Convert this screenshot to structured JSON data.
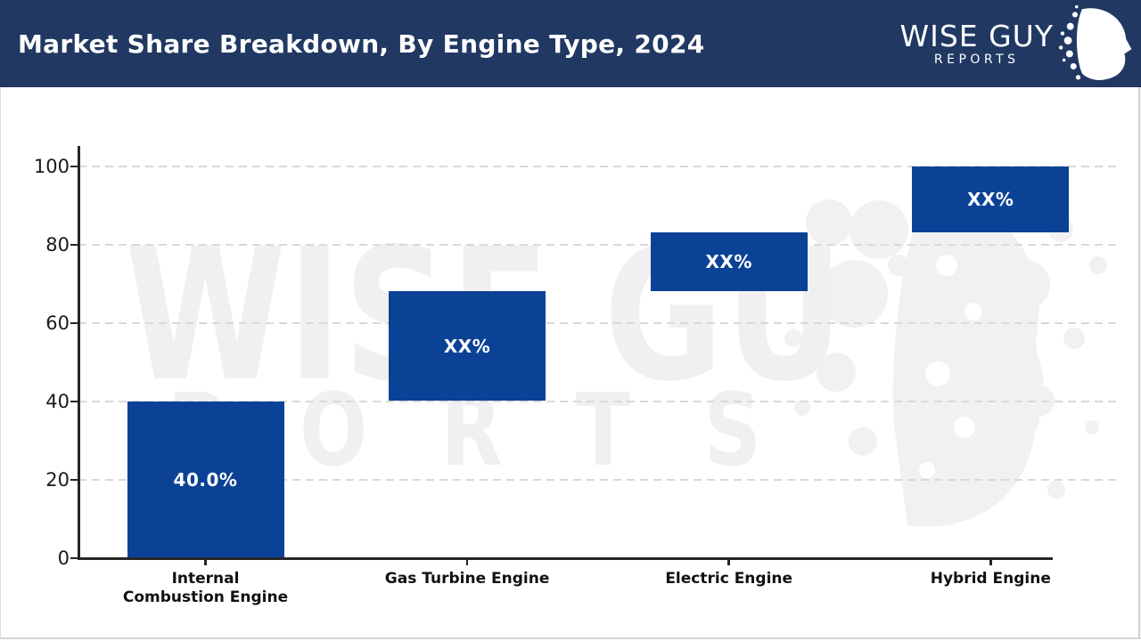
{
  "header": {
    "title": "Market Share Breakdown, By Engine Type, 2024",
    "logo": {
      "primary": "WISE GUY",
      "secondary": "REPORTS"
    }
  },
  "watermark": {
    "primary": "WISE GU",
    "secondary": "P O R T S"
  },
  "chart_data": {
    "type": "bar",
    "subtype": "floating-waterfall",
    "title": "Market Share Breakdown, By Engine Type, 2024",
    "categories": [
      "Internal\nCombustion Engine",
      "Gas Turbine Engine",
      "Electric Engine",
      "Hybrid Engine"
    ],
    "series": [
      {
        "name": "Market Share (%)",
        "segments": [
          {
            "category": "Internal Combustion Engine",
            "start": 0,
            "end": 40,
            "label": "40.0%"
          },
          {
            "category": "Gas Turbine Engine",
            "start": 40,
            "end": 68,
            "label": "XX%"
          },
          {
            "category": "Electric Engine",
            "start": 68,
            "end": 83,
            "label": "XX%"
          },
          {
            "category": "Hybrid Engine",
            "start": 83,
            "end": 100,
            "label": "XX%"
          }
        ]
      }
    ],
    "xlabel": "",
    "ylabel": "",
    "yticks": [
      0,
      20,
      40,
      60,
      80,
      100
    ],
    "ylim": [
      0,
      105
    ],
    "grid": "horizontal-dashed",
    "legend": "none",
    "bar_color": "#0b4296",
    "bar_label_color": "#ffffff"
  },
  "colors": {
    "header_bg": "#213863",
    "bar": "#0b4296",
    "grid": "#d9d9d9",
    "axis": "#262626",
    "tick_text": "#1a1a1a",
    "watermark": "#f0f0f0",
    "frame_border": "#d5d5d5"
  }
}
